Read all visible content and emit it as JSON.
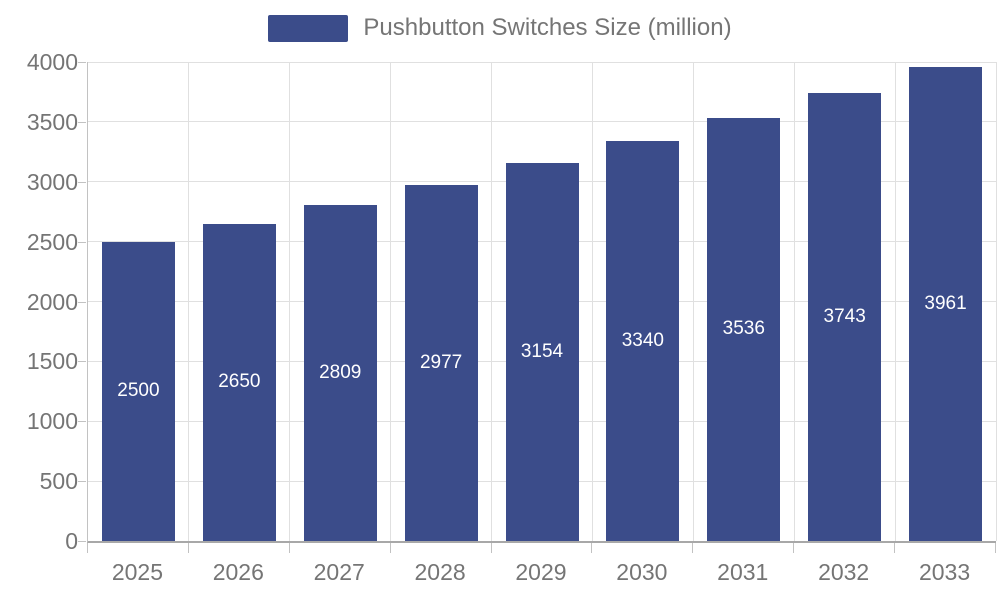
{
  "chart_data": {
    "type": "bar",
    "title": "",
    "legend_label": "Pushbutton Switches Size (million)",
    "legend_position": "top-center",
    "categories": [
      "2025",
      "2026",
      "2027",
      "2028",
      "2029",
      "2030",
      "2031",
      "2032",
      "2033"
    ],
    "values": [
      2500,
      2650,
      2809,
      2977,
      3154,
      3340,
      3536,
      3743,
      3961
    ],
    "xlabel": "",
    "ylabel": "",
    "ylim": [
      0,
      4000
    ],
    "yticks": [
      0,
      500,
      1000,
      1500,
      2000,
      2500,
      3000,
      3500,
      4000
    ],
    "grid": "on",
    "bar_label_position": "inside-center",
    "colors": {
      "bar": "#3b4c8a",
      "bar_label": "#ffffff",
      "axis_text": "#757575",
      "legend_text": "#757575",
      "gridline": "#e0e0e0",
      "axis_line": "#b0b0b0",
      "background": "#ffffff"
    }
  }
}
